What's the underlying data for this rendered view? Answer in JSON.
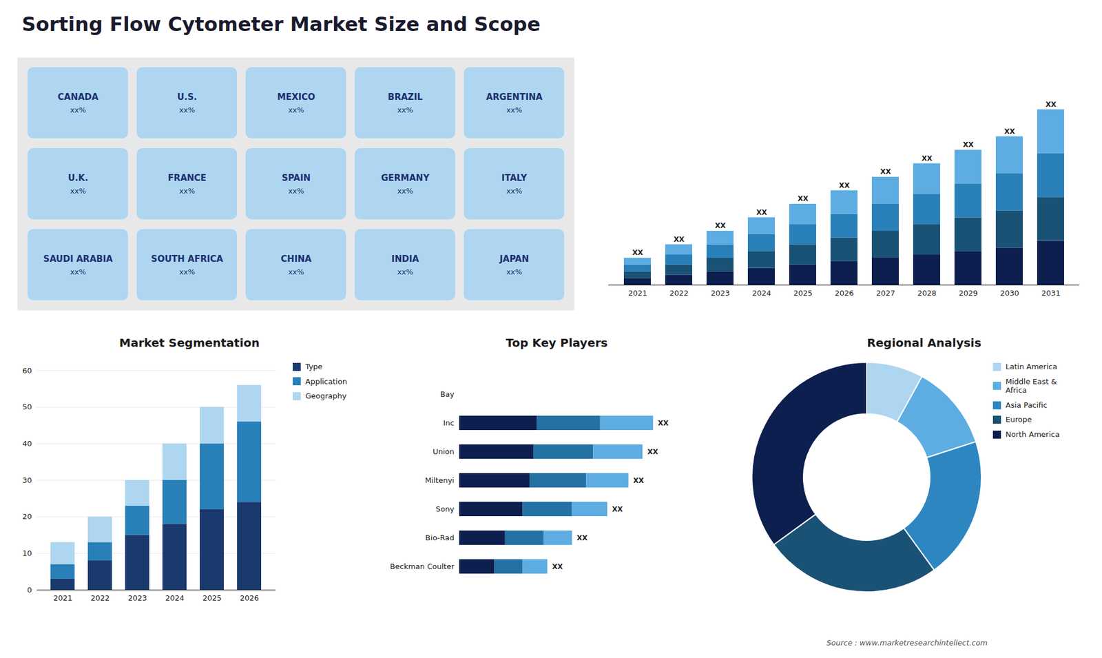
{
  "title": "Sorting Flow Cytometer Market Size and Scope",
  "caption": "Source : www.marketresearchintellect.com",
  "chart_data": [
    {
      "type": "map",
      "categories": [
        "CANADA",
        "U.S.",
        "MEXICO",
        "BRAZIL",
        "ARGENTINA",
        "U.K.",
        "FRANCE",
        "SPAIN",
        "GERMANY",
        "ITALY",
        "SAUDI ARABIA",
        "SOUTH AFRICA",
        "CHINA",
        "INDIA",
        "JAPAN"
      ],
      "labels": [
        "xx%",
        "xx%",
        "xx%",
        "xx%",
        "xx%",
        "xx%",
        "xx%",
        "xx%",
        "xx%",
        "xx%",
        "xx%",
        "xx%",
        "xx%",
        "xx%",
        "xx%"
      ]
    },
    {
      "type": "bar",
      "stacked": true,
      "categories": [
        2021,
        2022,
        2023,
        2024,
        2025,
        2026,
        2027,
        2028,
        2029,
        2030,
        2031
      ],
      "series": [
        {
          "color": "#0d1f4e",
          "values": [
            2,
            3,
            4,
            5,
            6,
            7,
            8,
            9,
            10,
            11,
            13
          ]
        },
        {
          "color": "#1a5276",
          "values": [
            2,
            3,
            4,
            5,
            6,
            7,
            8,
            9,
            10,
            11,
            13
          ]
        },
        {
          "color": "#2980b9",
          "values": [
            2,
            3,
            4,
            5,
            6,
            7,
            8,
            9,
            10,
            11,
            13
          ]
        },
        {
          "color": "#5dade2",
          "values": [
            2,
            3,
            4,
            5,
            6,
            7,
            8,
            9,
            10,
            11,
            13
          ]
        }
      ],
      "bar_labels": [
        "XX",
        "XX",
        "XX",
        "XX",
        "XX",
        "XX",
        "XX",
        "XX",
        "XX",
        "XX",
        "XX"
      ],
      "ylim": [
        0,
        65
      ],
      "tick_labels": "x"
    },
    {
      "type": "bar",
      "stacked": true,
      "title": "Market Segmentation",
      "categories": [
        2021,
        2022,
        2023,
        2024,
        2025,
        2026
      ],
      "series": [
        {
          "name": "Type",
          "color": "#1a3a6e",
          "values": [
            3,
            8,
            15,
            18,
            22,
            24
          ]
        },
        {
          "name": "Application",
          "color": "#2980b9",
          "values": [
            4,
            5,
            8,
            12,
            18,
            22
          ]
        },
        {
          "name": "Geography",
          "color": "#aed6f1",
          "values": [
            6,
            7,
            7,
            10,
            10,
            10
          ]
        }
      ],
      "ylim": [
        0,
        60
      ],
      "yticks": [
        0,
        10,
        20,
        30,
        40,
        50,
        60
      ],
      "grid": true,
      "legend": "right"
    },
    {
      "type": "bar",
      "stacked": true,
      "orientation": "horizontal",
      "title": "Top Key Players",
      "categories": [
        "Bay",
        "Inc",
        "Union",
        "Miltenyi",
        "Sony",
        "Bio-Rad",
        "Beckman Coulter"
      ],
      "series": [
        {
          "color": "#0d1f4e",
          "values": [
            0,
            22,
            21,
            20,
            18,
            13,
            10
          ]
        },
        {
          "color": "#2471a3",
          "values": [
            0,
            18,
            17,
            16,
            14,
            11,
            8
          ]
        },
        {
          "color": "#5dade2",
          "values": [
            0,
            15,
            14,
            12,
            10,
            8,
            7
          ]
        }
      ],
      "bar_labels": [
        null,
        "XX",
        "XX",
        "XX",
        "XX",
        "XX",
        "XX"
      ],
      "xlim": [
        0,
        70
      ],
      "tick_labels": "y"
    },
    {
      "type": "donut",
      "title": "Regional Analysis",
      "categories": [
        "Latin America",
        "Middle East &\nAfrica",
        "Asia Pacific",
        "Europe",
        "North America"
      ],
      "values": [
        8,
        12,
        20,
        25,
        35
      ],
      "colors": [
        "#aed6f1",
        "#5dade2",
        "#2e86c1",
        "#1a5276",
        "#0d1f4e"
      ],
      "legend": "right"
    }
  ]
}
